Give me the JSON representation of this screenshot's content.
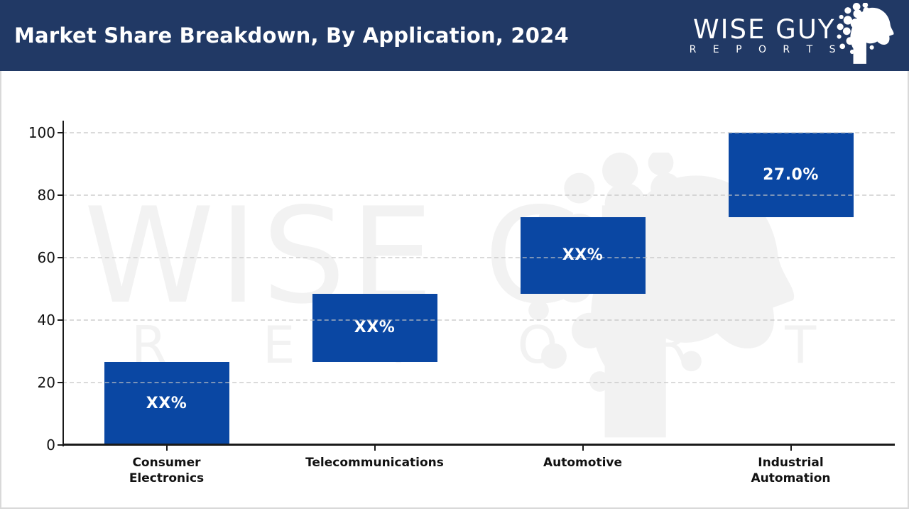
{
  "header": {
    "title": "Market Share Breakdown, By Application, 2024",
    "bg_color": "#213965",
    "logo": {
      "brand": "WISE GUY",
      "sub": "R E P O R T S"
    }
  },
  "watermark": {
    "brand": "WISE GUY",
    "sub": "REPORTS"
  },
  "chart_data": {
    "type": "bar",
    "subtype": "floating-waterfall",
    "title": "Market Share Breakdown, By Application, 2024",
    "categories": [
      "Consumer Electronics",
      "Telecommunications",
      "Automotive",
      "Industrial Automation"
    ],
    "category_label_lines": [
      [
        "Consumer",
        "Electronics"
      ],
      [
        "Telecommunications"
      ],
      [
        "Automotive"
      ],
      [
        "Industrial",
        "Automation"
      ]
    ],
    "segments": [
      {
        "category": "Consumer Electronics",
        "start": 0,
        "end": 26.5,
        "label": "XX%"
      },
      {
        "category": "Telecommunications",
        "start": 26.5,
        "end": 48.5,
        "label": "XX%"
      },
      {
        "category": "Automotive",
        "start": 48.5,
        "end": 73,
        "label": "XX%"
      },
      {
        "category": "Industrial Automation",
        "start": 73,
        "end": 100,
        "label": "27.0%"
      }
    ],
    "ylim": [
      0,
      100
    ],
    "yticks": [
      "0",
      "20",
      "40",
      "60",
      "80",
      "100"
    ],
    "ytick_values": [
      0,
      20,
      40,
      60,
      80,
      100
    ],
    "grid": "horizontal-dashed",
    "legend": "none",
    "bar_color": "#0a47a3",
    "bar_label_color": "#ffffff",
    "axis_color": "#1a1a1a",
    "gridline_color": "#d9d9d9",
    "watermark_color": "#f2f2f2"
  }
}
